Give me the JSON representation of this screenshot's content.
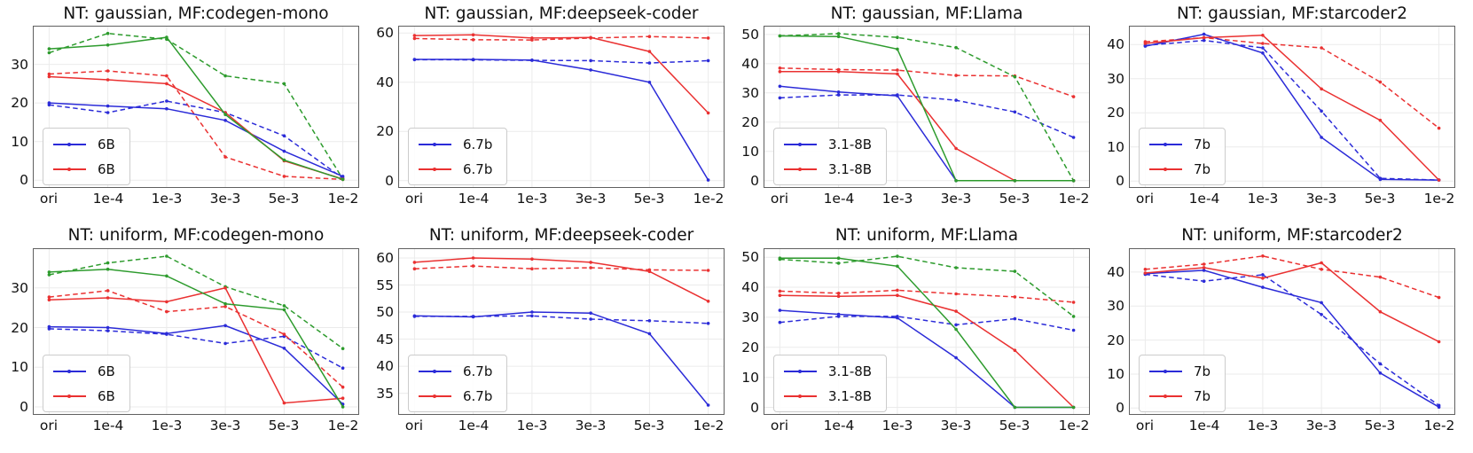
{
  "figure": {
    "rows": 2,
    "cols": 4,
    "background": "#ffffff"
  },
  "palette": {
    "blue": "#2b2bd8",
    "red": "#ea3131",
    "green": "#2d9b2d",
    "grid": "#ebebeb",
    "spine": "#606060",
    "text": "#111111",
    "legend_border": "#cccccc"
  },
  "chart_data": [
    {
      "type": "line",
      "title": "NT: gaussian, MF:codegen-mono",
      "categories": [
        "ori",
        "1e-4",
        "1e-3",
        "3e-3",
        "5e-3",
        "1e-2"
      ],
      "xlabel": "",
      "ylabel": "",
      "ylim": [
        -2,
        40
      ],
      "yticks": [
        0,
        10,
        20,
        30
      ],
      "grid": true,
      "legend_loc": "lower left",
      "legend": [
        {
          "label": "6B",
          "color": "blue"
        },
        {
          "label": "6B",
          "color": "red"
        }
      ],
      "series": [
        {
          "name": "blue-dashed",
          "color": "blue",
          "style": "dashed",
          "values": [
            19.5,
            17.5,
            20.5,
            17.5,
            11.5,
            0.5
          ]
        },
        {
          "name": "red-dashed",
          "color": "red",
          "style": "dashed",
          "values": [
            27.5,
            28.3,
            27.0,
            6.0,
            1.0,
            0.2
          ]
        },
        {
          "name": "green-dashed",
          "color": "green",
          "style": "dashed",
          "values": [
            33.0,
            38.0,
            36.5,
            27.0,
            25.0,
            0.3
          ]
        },
        {
          "name": "blue-solid",
          "color": "blue",
          "style": "solid",
          "values": [
            20.0,
            19.2,
            18.5,
            15.5,
            7.5,
            1.0
          ]
        },
        {
          "name": "red-solid",
          "color": "red",
          "style": "solid",
          "values": [
            26.8,
            26.0,
            25.0,
            17.5,
            5.0,
            0.3
          ]
        },
        {
          "name": "green-solid",
          "color": "green",
          "style": "solid",
          "values": [
            34.0,
            35.0,
            37.0,
            17.0,
            5.2,
            0.2
          ]
        }
      ]
    },
    {
      "type": "line",
      "title": "NT: gaussian, MF:deepseek-coder",
      "categories": [
        "ori",
        "1e-4",
        "1e-3",
        "3e-3",
        "5e-3",
        "1e-2"
      ],
      "xlabel": "",
      "ylabel": "",
      "ylim": [
        -3,
        63
      ],
      "yticks": [
        0,
        20,
        40,
        60
      ],
      "grid": true,
      "legend_loc": "lower left",
      "legend": [
        {
          "label": "6.7b",
          "color": "blue"
        },
        {
          "label": "6.7b",
          "color": "red"
        }
      ],
      "series": [
        {
          "name": "blue-dashed",
          "color": "blue",
          "style": "dashed",
          "values": [
            49.2,
            49.1,
            48.9,
            48.8,
            47.8,
            48.8
          ]
        },
        {
          "name": "red-dashed",
          "color": "red",
          "style": "dashed",
          "values": [
            57.8,
            57.3,
            57.2,
            58.0,
            58.6,
            58.0
          ]
        },
        {
          "name": "blue-solid",
          "color": "blue",
          "style": "solid",
          "values": [
            49.3,
            49.3,
            49.0,
            45.0,
            40.0,
            0.2
          ]
        },
        {
          "name": "red-solid",
          "color": "red",
          "style": "solid",
          "values": [
            59.0,
            59.3,
            58.0,
            58.2,
            52.5,
            27.5
          ]
        }
      ]
    },
    {
      "type": "line",
      "title": "NT: gaussian, MF:Llama",
      "categories": [
        "ori",
        "1e-4",
        "1e-3",
        "3e-3",
        "5e-3",
        "1e-2"
      ],
      "xlabel": "",
      "ylabel": "",
      "ylim": [
        -2.5,
        53
      ],
      "yticks": [
        0,
        10,
        20,
        30,
        40,
        50
      ],
      "grid": true,
      "legend_loc": "lower left",
      "legend": [
        {
          "label": "3.1-8B",
          "color": "blue"
        },
        {
          "label": "3.1-8B",
          "color": "red"
        }
      ],
      "series": [
        {
          "name": "blue-dashed",
          "color": "blue",
          "style": "dashed",
          "values": [
            28.3,
            29.3,
            29.3,
            27.5,
            23.5,
            14.8
          ]
        },
        {
          "name": "red-dashed",
          "color": "red",
          "style": "dashed",
          "values": [
            38.5,
            38.0,
            37.8,
            36.0,
            35.8,
            28.7
          ]
        },
        {
          "name": "green-dashed",
          "color": "green",
          "style": "dashed",
          "values": [
            49.5,
            50.3,
            49.0,
            45.5,
            35.5,
            0.0
          ]
        },
        {
          "name": "blue-solid",
          "color": "blue",
          "style": "solid",
          "values": [
            32.3,
            30.3,
            29.0,
            0.0,
            0.0,
            0.0
          ]
        },
        {
          "name": "red-solid",
          "color": "red",
          "style": "solid",
          "values": [
            37.3,
            37.3,
            36.5,
            11.0,
            0.0,
            0.0
          ]
        },
        {
          "name": "green-solid",
          "color": "green",
          "style": "solid",
          "values": [
            49.5,
            49.3,
            45.0,
            0.0,
            0.0,
            0.0
          ]
        }
      ]
    },
    {
      "type": "line",
      "title": "NT: gaussian, MF:starcoder2",
      "categories": [
        "ori",
        "1e-4",
        "1e-3",
        "3e-3",
        "5e-3",
        "1e-2"
      ],
      "xlabel": "",
      "ylabel": "",
      "ylim": [
        -2,
        45.5
      ],
      "yticks": [
        0,
        10,
        20,
        30,
        40
      ],
      "grid": true,
      "legend_loc": "lower left",
      "legend": [
        {
          "label": "7b",
          "color": "blue"
        },
        {
          "label": "7b",
          "color": "red"
        }
      ],
      "series": [
        {
          "name": "blue-dashed",
          "color": "blue",
          "style": "dashed",
          "values": [
            39.7,
            41.2,
            39.0,
            20.5,
            0.8,
            0.3
          ]
        },
        {
          "name": "red-dashed",
          "color": "red",
          "style": "dashed",
          "values": [
            40.8,
            42.0,
            40.3,
            39.0,
            29.0,
            15.5
          ]
        },
        {
          "name": "blue-solid",
          "color": "blue",
          "style": "solid",
          "values": [
            39.5,
            43.0,
            37.5,
            12.8,
            0.5,
            0.3
          ]
        },
        {
          "name": "red-solid",
          "color": "red",
          "style": "solid",
          "values": [
            40.3,
            42.0,
            42.7,
            27.0,
            17.8,
            0.3
          ]
        }
      ]
    },
    {
      "type": "line",
      "title": "NT: uniform, MF:codegen-mono",
      "categories": [
        "ori",
        "1e-4",
        "1e-3",
        "3e-3",
        "5e-3",
        "1e-2"
      ],
      "xlabel": "",
      "ylabel": "",
      "ylim": [
        -2,
        40
      ],
      "yticks": [
        0,
        10,
        20,
        30
      ],
      "grid": true,
      "legend_loc": "lower left",
      "legend": [
        {
          "label": "6B",
          "color": "blue"
        },
        {
          "label": "6B",
          "color": "red"
        }
      ],
      "series": [
        {
          "name": "blue-dashed",
          "color": "blue",
          "style": "dashed",
          "values": [
            19.7,
            19.2,
            18.3,
            16.0,
            17.8,
            9.8
          ]
        },
        {
          "name": "red-dashed",
          "color": "red",
          "style": "dashed",
          "values": [
            27.7,
            29.3,
            24.0,
            25.3,
            18.3,
            5.0
          ]
        },
        {
          "name": "green-dashed",
          "color": "green",
          "style": "dashed",
          "values": [
            33.3,
            36.3,
            38.0,
            30.3,
            25.5,
            14.7
          ]
        },
        {
          "name": "blue-solid",
          "color": "blue",
          "style": "solid",
          "values": [
            20.2,
            20.0,
            18.5,
            20.5,
            14.8,
            0.7
          ]
        },
        {
          "name": "red-solid",
          "color": "red",
          "style": "solid",
          "values": [
            27.0,
            27.5,
            26.5,
            30.0,
            1.0,
            2.2
          ]
        },
        {
          "name": "green-solid",
          "color": "green",
          "style": "solid",
          "values": [
            34.0,
            34.7,
            33.0,
            26.0,
            24.5,
            0.0
          ]
        }
      ]
    },
    {
      "type": "line",
      "title": "NT: uniform, MF:deepseek-coder",
      "categories": [
        "ori",
        "1e-4",
        "1e-3",
        "3e-3",
        "5e-3",
        "1e-2"
      ],
      "xlabel": "",
      "ylabel": "",
      "ylim": [
        31,
        61.8
      ],
      "yticks": [
        35,
        40,
        45,
        50,
        55,
        60
      ],
      "grid": true,
      "legend_loc": "lower left",
      "legend": [
        {
          "label": "6.7b",
          "color": "blue"
        },
        {
          "label": "6.7b",
          "color": "red"
        }
      ],
      "series": [
        {
          "name": "blue-dashed",
          "color": "blue",
          "style": "dashed",
          "values": [
            49.2,
            49.2,
            49.3,
            48.7,
            48.4,
            47.9
          ]
        },
        {
          "name": "red-dashed",
          "color": "red",
          "style": "dashed",
          "values": [
            58.0,
            58.5,
            58.0,
            58.2,
            57.8,
            57.7
          ]
        },
        {
          "name": "blue-solid",
          "color": "blue",
          "style": "solid",
          "values": [
            49.3,
            49.1,
            50.0,
            49.8,
            46.0,
            32.8
          ]
        },
        {
          "name": "red-solid",
          "color": "red",
          "style": "solid",
          "values": [
            59.2,
            60.0,
            59.8,
            59.2,
            57.5,
            52.0
          ]
        }
      ]
    },
    {
      "type": "line",
      "title": "NT: uniform, MF:Llama",
      "categories": [
        "ori",
        "1e-4",
        "1e-3",
        "3e-3",
        "5e-3",
        "1e-2"
      ],
      "xlabel": "",
      "ylabel": "",
      "ylim": [
        -2.5,
        53
      ],
      "yticks": [
        0,
        10,
        20,
        30,
        40,
        50
      ],
      "grid": true,
      "legend_loc": "lower left",
      "legend": [
        {
          "label": "3.1-8B",
          "color": "blue"
        },
        {
          "label": "3.1-8B",
          "color": "red"
        }
      ],
      "series": [
        {
          "name": "blue-dashed",
          "color": "blue",
          "style": "dashed",
          "values": [
            28.3,
            30.3,
            30.3,
            27.5,
            29.5,
            25.7
          ]
        },
        {
          "name": "red-dashed",
          "color": "red",
          "style": "dashed",
          "values": [
            38.7,
            38.0,
            39.0,
            37.8,
            36.8,
            35.0
          ]
        },
        {
          "name": "green-dashed",
          "color": "green",
          "style": "dashed",
          "values": [
            49.3,
            48.0,
            50.3,
            46.5,
            45.3,
            30.3
          ]
        },
        {
          "name": "blue-solid",
          "color": "blue",
          "style": "solid",
          "values": [
            32.3,
            31.0,
            29.8,
            16.5,
            0.0,
            0.0
          ]
        },
        {
          "name": "red-solid",
          "color": "red",
          "style": "solid",
          "values": [
            37.3,
            37.0,
            37.3,
            32.0,
            19.0,
            0.0
          ]
        },
        {
          "name": "green-solid",
          "color": "green",
          "style": "solid",
          "values": [
            49.7,
            49.7,
            47.0,
            26.0,
            0.0,
            0.0
          ]
        }
      ]
    },
    {
      "type": "line",
      "title": "NT: uniform, MF:starcoder2",
      "categories": [
        "ori",
        "1e-4",
        "1e-3",
        "3e-3",
        "5e-3",
        "1e-2"
      ],
      "xlabel": "",
      "ylabel": "",
      "ylim": [
        -2,
        47
      ],
      "yticks": [
        0,
        10,
        20,
        30,
        40
      ],
      "grid": true,
      "legend_loc": "lower left",
      "legend": [
        {
          "label": "7b",
          "color": "blue"
        },
        {
          "label": "7b",
          "color": "red"
        }
      ],
      "series": [
        {
          "name": "blue-dashed",
          "color": "blue",
          "style": "dashed",
          "values": [
            39.3,
            37.3,
            39.2,
            27.5,
            13.0,
            0.8
          ]
        },
        {
          "name": "red-dashed",
          "color": "red",
          "style": "dashed",
          "values": [
            40.8,
            42.3,
            44.7,
            40.8,
            38.5,
            32.5
          ]
        },
        {
          "name": "blue-solid",
          "color": "blue",
          "style": "solid",
          "values": [
            39.5,
            40.5,
            35.5,
            31.0,
            10.3,
            0.3
          ]
        },
        {
          "name": "red-solid",
          "color": "red",
          "style": "solid",
          "values": [
            39.7,
            41.3,
            38.2,
            42.7,
            28.3,
            19.5
          ]
        }
      ]
    }
  ]
}
